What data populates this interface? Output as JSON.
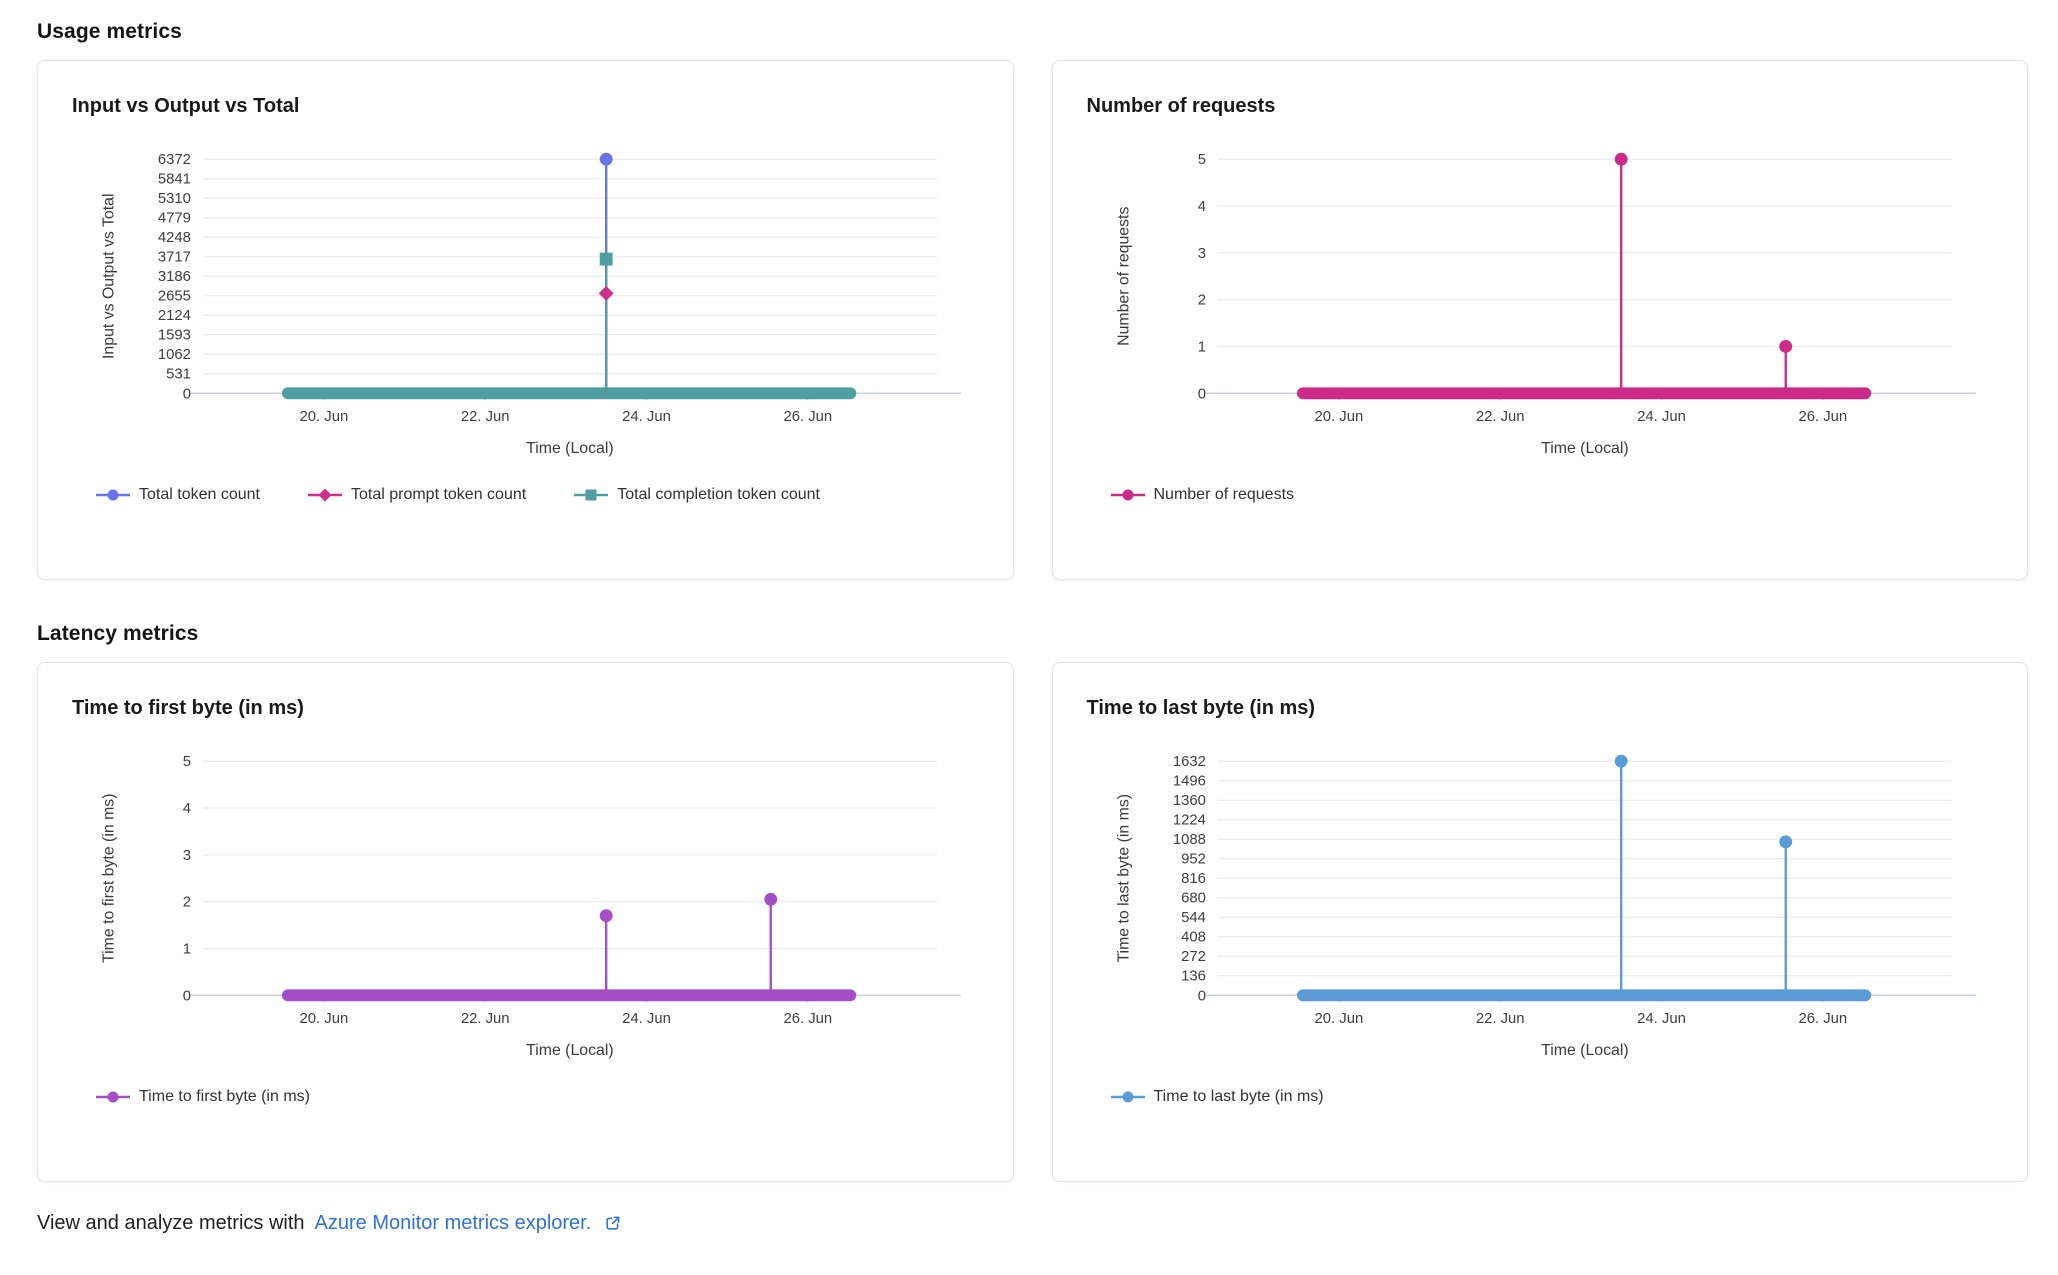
{
  "sections": {
    "usage_heading": "Usage metrics",
    "latency_heading": "Latency metrics"
  },
  "footer": {
    "text": "View and analyze metrics with",
    "link_text": "Azure Monitor metrics explorer.",
    "link_color": "#2f72d9",
    "external_icon": "external-link-icon"
  },
  "palette": {
    "gridline": "#e9ecf1",
    "axis_line": "#c5d1e5",
    "tick_text": "#3f3e3c",
    "axis_title_text": "#3b3a39"
  },
  "chart_data": [
    {
      "type": "line",
      "title": "Input vs Output vs Total",
      "ylabel": "Input vs Output vs Total",
      "xlabel": "Time (Local)",
      "ylim": [
        0,
        6372
      ],
      "y_ticks": [
        6372,
        5841,
        5310,
        4779,
        4248,
        3717,
        3186,
        2655,
        2124,
        1593,
        1062,
        531,
        0
      ],
      "x_tick_labels": [
        "20. Jun",
        "22. Jun",
        "24. Jun",
        "26. Jun"
      ],
      "x_tick_days": [
        20,
        22,
        24,
        26
      ],
      "xlim_days": [
        18.5,
        27.6
      ],
      "grid": true,
      "legend_position": "bottom",
      "baseline": {
        "start_day": 19.48,
        "end_day": 26.6,
        "value": 0,
        "color": "#4f9fa0"
      },
      "series": [
        {
          "name": "Total token count",
          "color": "#6874e1",
          "marker": "circle",
          "points": [
            {
              "day": 23.5,
              "value": 6372
            }
          ]
        },
        {
          "name": "Total prompt token count",
          "color": "#d02e8c",
          "marker": "diamond",
          "points": [
            {
              "day": 23.5,
              "value": 2719
            }
          ]
        },
        {
          "name": "Total completion token count",
          "color": "#4f9fa0",
          "marker": "square",
          "points": [
            {
              "day": 23.5,
              "value": 3653
            }
          ]
        }
      ]
    },
    {
      "type": "line",
      "title": "Number of requests",
      "ylabel": "Number of requests",
      "xlabel": "Time (Local)",
      "ylim": [
        0,
        5
      ],
      "y_ticks": [
        5,
        4,
        3,
        2,
        1,
        0
      ],
      "x_tick_labels": [
        "20. Jun",
        "22. Jun",
        "24. Jun",
        "26. Jun"
      ],
      "x_tick_days": [
        20,
        22,
        24,
        26
      ],
      "xlim_days": [
        18.5,
        27.6
      ],
      "grid": true,
      "legend_position": "bottom",
      "baseline": {
        "start_day": 19.48,
        "end_day": 26.6,
        "value": 0,
        "color": "#cc2b8a"
      },
      "series": [
        {
          "name": "Number of requests",
          "color": "#cc2b8a",
          "marker": "circle",
          "points": [
            {
              "day": 23.5,
              "value": 5
            },
            {
              "day": 25.54,
              "value": 1
            }
          ]
        }
      ]
    },
    {
      "type": "line",
      "title": "Time to first byte (in ms)",
      "ylabel": "Time to first byte (in ms)",
      "xlabel": "Time (Local)",
      "ylim": [
        0,
        5
      ],
      "y_ticks": [
        5,
        4,
        3,
        2,
        1,
        0
      ],
      "x_tick_labels": [
        "20. Jun",
        "22. Jun",
        "24. Jun",
        "26. Jun"
      ],
      "x_tick_days": [
        20,
        22,
        24,
        26
      ],
      "xlim_days": [
        18.5,
        27.6
      ],
      "grid": true,
      "legend_position": "bottom",
      "baseline": {
        "start_day": 19.48,
        "end_day": 26.6,
        "value": 0,
        "color": "#a44fc6"
      },
      "series": [
        {
          "name": "Time to first byte (in ms)",
          "color": "#a44fc6",
          "marker": "circle",
          "points": [
            {
              "day": 23.5,
              "value": 1.7
            },
            {
              "day": 25.54,
              "value": 2.05
            }
          ]
        }
      ]
    },
    {
      "type": "line",
      "title": "Time to last byte (in ms)",
      "ylabel": "Time to last byte (in ms)",
      "xlabel": "Time (Local)",
      "ylim": [
        0,
        1632
      ],
      "y_ticks": [
        1632,
        1496,
        1360,
        1224,
        1088,
        952,
        816,
        680,
        544,
        408,
        272,
        136,
        0
      ],
      "x_tick_labels": [
        "20. Jun",
        "22. Jun",
        "24. Jun",
        "26. Jun"
      ],
      "x_tick_days": [
        20,
        22,
        24,
        26
      ],
      "xlim_days": [
        18.5,
        27.6
      ],
      "grid": true,
      "legend_position": "bottom",
      "baseline": {
        "start_day": 19.48,
        "end_day": 26.6,
        "value": 0,
        "color": "#5a9bd8"
      },
      "series": [
        {
          "name": "Time to last byte (in ms)",
          "color": "#5a9bd8",
          "marker": "circle",
          "points": [
            {
              "day": 23.5,
              "value": 1632
            },
            {
              "day": 25.54,
              "value": 1070
            }
          ]
        }
      ]
    }
  ]
}
